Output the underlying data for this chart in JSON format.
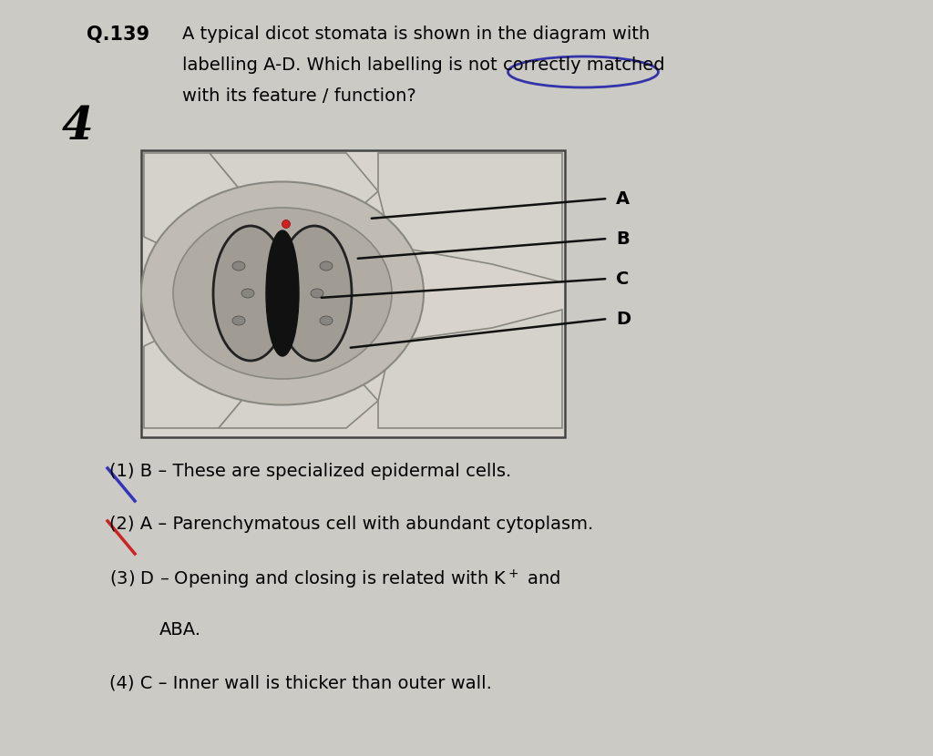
{
  "bg_color": "#cccac4",
  "title_question": "Q.139",
  "title_text_line1": "A typical dicot stomata is shown in the diagram with",
  "title_text_line2": "labelling A-D. Which labelling is not correctly matched",
  "title_text_line3": "with its feature / function?",
  "handwritten_4": "4",
  "option1": "(1) B – These are specialized epidermal cells.",
  "option2": "(2) A – Parenchymatous cell with abundant cytoplasm.",
  "option3a": "(3) D – Opening and closing is related with K",
  "option3b": "      ABA.",
  "option4": "(4) C – Inner wall is thicker than outer wall.",
  "labels": [
    "A",
    "B",
    "C",
    "D"
  ],
  "circle_color": "#3333aa",
  "diagram_border": "#444444",
  "epidermal_face": "#d5d2cb",
  "epidermal_edge": "#888880",
  "subsidiary_outer_face": "#c0bcb4",
  "subsidiary_inner_face": "#b0aca4",
  "guard_face": "#a09c94",
  "guard_edge": "#222222",
  "pore_color": "#111111",
  "red_dot": "#cc2222",
  "label_line_color": "#111111",
  "tick_color": "#3333bb",
  "cross_color": "#cc2222"
}
